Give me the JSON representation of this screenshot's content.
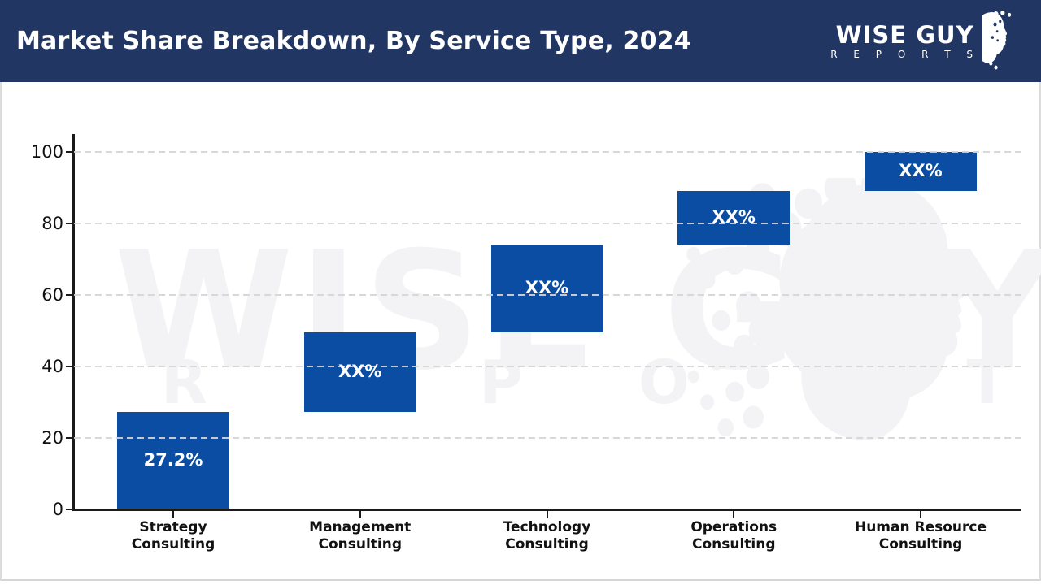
{
  "header": {
    "title": "Market Share Breakdown, By Service Type, 2024",
    "logo": {
      "name": "WISE GUY",
      "sub": "R E P O R T S"
    }
  },
  "watermark": {
    "name": "WISE GUY",
    "sub": "R E P O R T S"
  },
  "colors": {
    "header_bg": "#213663",
    "bar": "#0b4da2",
    "axis": "#1a1a1a",
    "gridline": "#d5d5d5",
    "bar_label_text": "#ffffff",
    "title_text": "#ffffff",
    "tick_text": "#111111",
    "watermark": "#f3f3f5",
    "frame_border": "#dcdcdc"
  },
  "chart_data": {
    "type": "bar",
    "variant": "waterfall",
    "title": "Market Share Breakdown, By Service Type, 2024",
    "xlabel": "",
    "ylabel": "",
    "ylim": [
      0,
      100
    ],
    "yticks": [
      0,
      20,
      40,
      60,
      80,
      100
    ],
    "grid": {
      "horizontal": true,
      "style": "dashed",
      "drawn_over_bars": true
    },
    "categories": [
      "Strategy Consulting",
      "Management Consulting",
      "Technology Consulting",
      "Operations Consulting",
      "Human Resource Consulting"
    ],
    "bars": [
      {
        "category": "Strategy Consulting",
        "start": 0,
        "end": 27.2,
        "label": "27.2%"
      },
      {
        "category": "Management Consulting",
        "start": 27.2,
        "end": 49.6,
        "label": "XX%"
      },
      {
        "category": "Technology Consulting",
        "start": 49.6,
        "end": 74.2,
        "label": "XX%"
      },
      {
        "category": "Operations Consulting",
        "start": 74.2,
        "end": 89.2,
        "label": "XX%"
      },
      {
        "category": "Human Resource Consulting",
        "start": 89.2,
        "end": 100,
        "label": "XX%"
      }
    ]
  }
}
